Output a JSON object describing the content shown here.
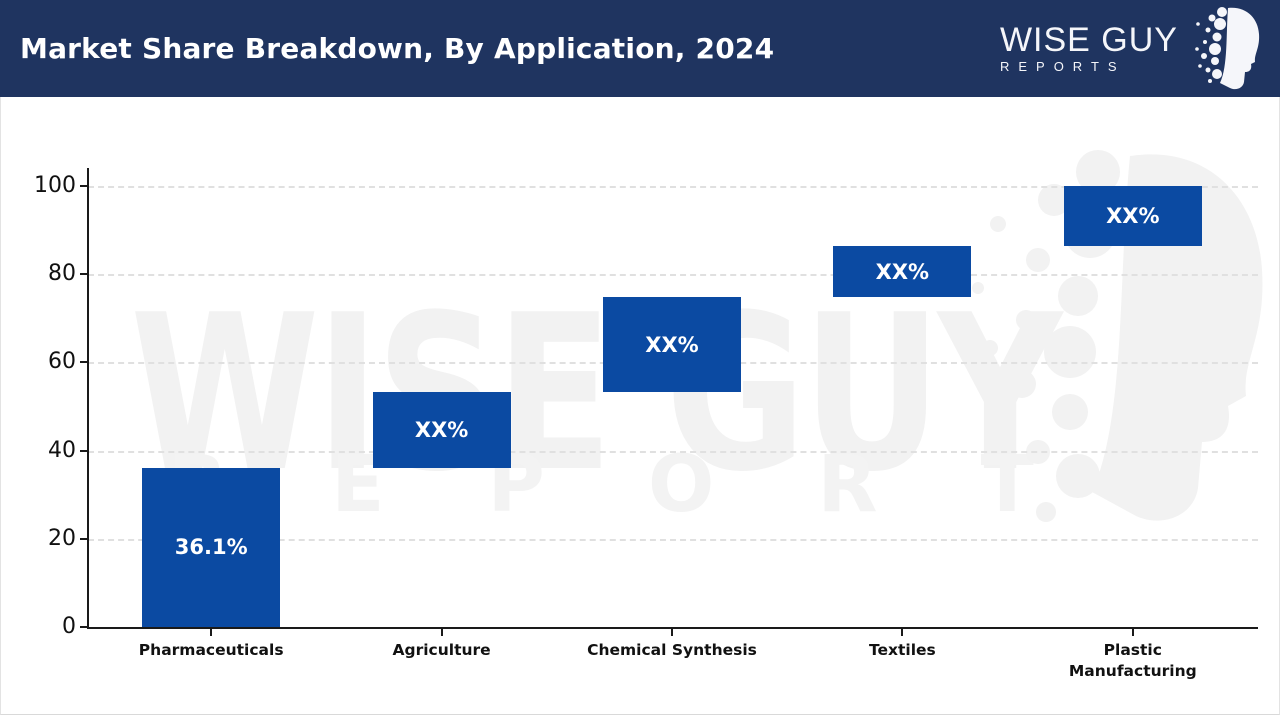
{
  "header": {
    "title": "Market Share Breakdown, By Application, 2024",
    "background_color": "#1f3460",
    "logo": {
      "line1": "WISE GUY",
      "line2": "REPORTS"
    }
  },
  "watermark": {
    "line1": "WISE GUY",
    "line2": "REPORTS"
  },
  "chart_data": {
    "type": "bar",
    "subtype": "waterfall",
    "title": "Market Share Breakdown, By Application, 2024",
    "categories": [
      "Pharmaceuticals",
      "Agriculture",
      "Chemical Synthesis",
      "Textiles",
      "Plastic\nManufacturing"
    ],
    "segments": [
      {
        "category": "Pharmaceuticals",
        "start": 0,
        "end": 36.1,
        "label": "36.1%"
      },
      {
        "category": "Agriculture",
        "start": 36.1,
        "end": 53.3,
        "label": "XX%"
      },
      {
        "category": "Chemical Synthesis",
        "start": 53.3,
        "end": 74.8,
        "label": "XX%"
      },
      {
        "category": "Textiles",
        "start": 74.8,
        "end": 86.4,
        "label": "XX%"
      },
      {
        "category": "Plastic Manufacturing",
        "start": 86.4,
        "end": 100,
        "label": "XX%"
      }
    ],
    "ylim": [
      0,
      100
    ],
    "yticks": [
      0,
      20,
      40,
      60,
      80,
      100
    ],
    "xlabel": "",
    "ylabel": "",
    "grid": "horizontal-dashed",
    "legend": "none",
    "bar_color": "#0b4aa2",
    "bar_label_color": "#ffffff",
    "axis_color": "#1a1a1a"
  }
}
